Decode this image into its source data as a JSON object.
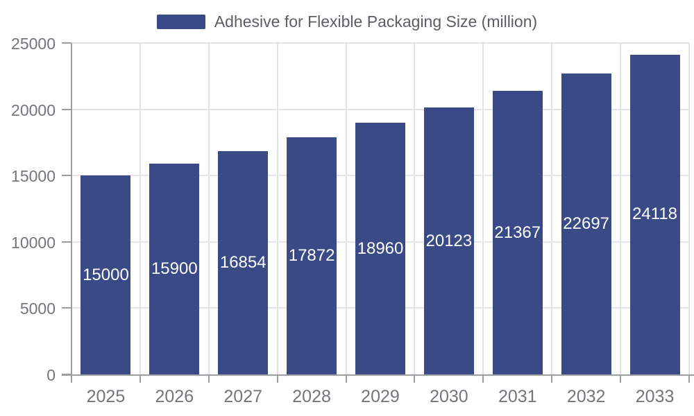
{
  "chart_data": {
    "type": "bar",
    "title": "Adhesive for Flexible Packaging Size (million)",
    "legend": [
      "Adhesive for Flexible Packaging Size (million)"
    ],
    "legend_position": "top-center",
    "categories": [
      "2025",
      "2026",
      "2027",
      "2028",
      "2029",
      "2030",
      "2031",
      "2032",
      "2033"
    ],
    "series": [
      {
        "name": "Adhesive for Flexible Packaging Size (million)",
        "values": [
          15000,
          15900,
          16854,
          17872,
          18960,
          20123,
          21367,
          22697,
          24118
        ]
      }
    ],
    "bar_value_labels": [
      "15000",
      "15900",
      "16854",
      "17872",
      "18960",
      "20123",
      "21367",
      "22697",
      "24118"
    ],
    "xlabel": "",
    "ylabel": "",
    "ylim": [
      0,
      25000
    ],
    "y_ticks": [
      0,
      5000,
      10000,
      15000,
      20000,
      25000
    ],
    "y_tick_labels": [
      "0",
      "5000",
      "10000",
      "15000",
      "20000",
      "25000"
    ],
    "grid": true,
    "colors": {
      "bar": "#3a4a86",
      "bar_label": "#ffffff",
      "axis_label": "#73757a",
      "legend_text": "#5b5d62",
      "gridline": "#e5e5e8",
      "axis_line": "#9b9da2",
      "background": "#ffffff"
    }
  }
}
